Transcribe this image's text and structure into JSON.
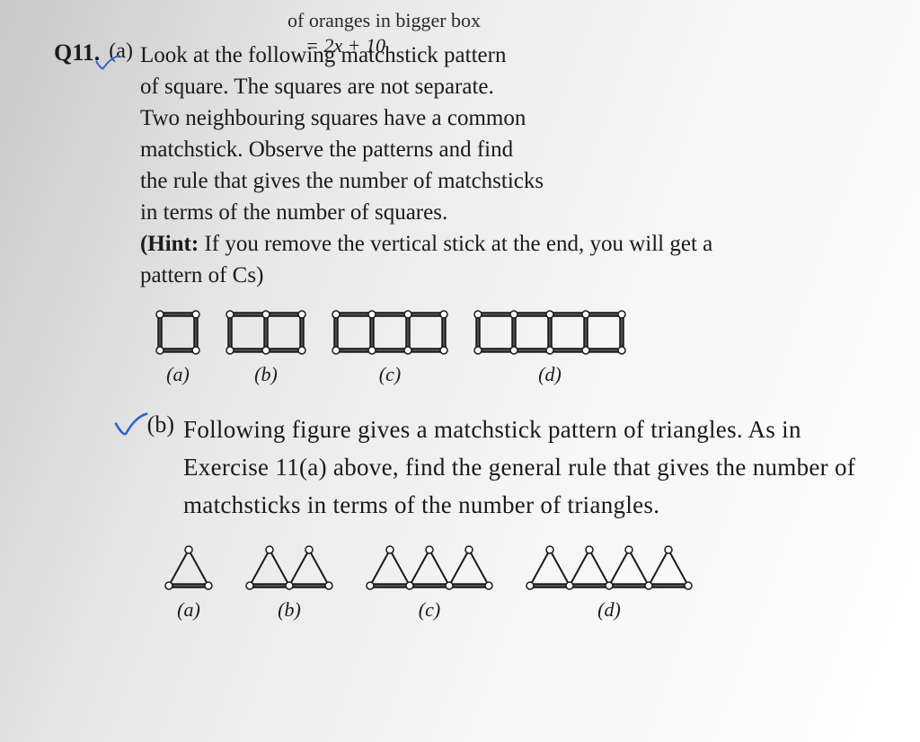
{
  "top_fragment": "of oranges in bigger box",
  "equation": "= 2x + 10",
  "question_number": "Q11.",
  "part_a": {
    "label": "(a)",
    "text_lines": [
      "Look at the following matchstick pattern",
      "of square. The squares are not separate.",
      "Two neighbouring squares have a common",
      "matchstick. Observe the patterns and find",
      "the rule that gives the number of matchsticks",
      "in terms of the number of squares."
    ],
    "hint_label": "(Hint:",
    "hint_text": " If you remove the vertical stick at the end, you will get a pattern of Cs)",
    "figure_labels": [
      "(a)",
      "(b)",
      "(c)",
      "(d)"
    ],
    "squares": {
      "unit": 40,
      "node_r": 4,
      "counts": [
        1,
        2,
        3,
        4
      ],
      "stroke": "#1a1a1a",
      "fill": "#ffffff"
    }
  },
  "part_b": {
    "label": "(b)",
    "text": "Following figure gives a matchstick pattern of triangles. As in Exercise 11(a) above, find the general rule that gives the number of matchsticks in terms of the number of triangles.",
    "figure_labels": [
      "(a)",
      "(b)",
      "(c)",
      "(d)"
    ],
    "triangles": {
      "base": 44,
      "height": 40,
      "node_r": 4,
      "counts": [
        1,
        2,
        3,
        4
      ],
      "stroke": "#1a1a1a",
      "fill": "#ffffff"
    }
  },
  "colors": {
    "text": "#1a1a1a",
    "bg_light": "#ffffff",
    "bg_dark": "#c8c8c8",
    "pen": "#3060d0"
  }
}
